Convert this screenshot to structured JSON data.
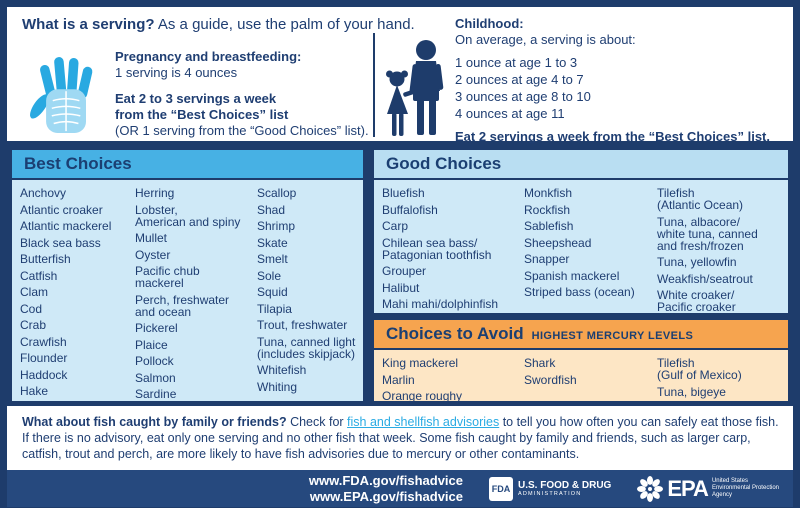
{
  "colors": {
    "navy": "#1e3c6b",
    "text_navy": "#1f3e72",
    "best_header_bg": "#47b1e4",
    "good_header_bg": "#b9def2",
    "panel_body_blue": "#cfe9f7",
    "avoid_header_bg": "#f6a44f",
    "avoid_body_bg": "#fde6c5",
    "link_blue": "#2aabe3",
    "footer_bg": "#26497e",
    "hand_blue": "#29a9e1"
  },
  "header": {
    "question_bold": "What is a serving?",
    "question_rest": " As a guide, use the palm of your hand.",
    "pregnancy": {
      "title": "Pregnancy and breastfeeding:",
      "serving": "1 serving is 4 ounces",
      "eat_line1": "Eat 2 to 3 servings a week",
      "eat_line2": "from the “Best Choices” list",
      "eat_note": "(OR 1 serving from the “Good Choices” list)."
    },
    "childhood": {
      "title": "Childhood:",
      "subtitle": "On average, a serving is about:",
      "servings": [
        "1 ounce at age 1 to 3",
        "2 ounces at age 4 to 7",
        "3 ounces at age 8 to 10",
        "4 ounces at age 11"
      ],
      "eat_bold": "Eat 2 servings a week from the “Best Choices” list."
    }
  },
  "best_choices": {
    "title": "Best Choices",
    "columns": [
      [
        "Anchovy",
        "Atlantic croaker",
        "Atlantic mackerel",
        "Black sea bass",
        "Butterfish",
        "Catfish",
        "Clam",
        "Cod",
        "Crab",
        "Crawfish",
        "Flounder",
        "Haddock",
        "Hake"
      ],
      [
        "Herring",
        "Lobster,\nAmerican and spiny",
        "Mullet",
        "Oyster",
        "Pacific chub\nmackerel",
        "Perch, freshwater\nand ocean",
        "Pickerel",
        "Plaice",
        "Pollock",
        "Salmon",
        "Sardine"
      ],
      [
        "Scallop",
        "Shad",
        "Shrimp",
        "Skate",
        "Smelt",
        "Sole",
        "Squid",
        "Tilapia",
        "Trout, freshwater",
        "Tuna, canned light\n(includes skipjack)",
        "Whitefish",
        "Whiting"
      ]
    ]
  },
  "good_choices": {
    "title": "Good Choices",
    "columns": [
      [
        "Bluefish",
        "Buffalofish",
        "Carp",
        "Chilean sea bass/\nPatagonian toothfish",
        "Grouper",
        "Halibut",
        "Mahi mahi/dolphinfish"
      ],
      [
        "Monkfish",
        "Rockfish",
        "Sablefish",
        "Sheepshead",
        "Snapper",
        "Spanish mackerel",
        "Striped bass (ocean)"
      ],
      [
        "Tilefish\n(Atlantic Ocean)",
        "Tuna, albacore/\nwhite tuna, canned\nand fresh/frozen",
        "Tuna, yellowfin",
        "Weakfish/seatrout",
        "White croaker/\nPacific croaker"
      ]
    ]
  },
  "choices_to_avoid": {
    "title": "Choices to Avoid",
    "subtitle": "HIGHEST MERCURY LEVELS",
    "columns": [
      [
        "King mackerel",
        "Marlin",
        "Orange roughy"
      ],
      [
        "Shark",
        "Swordfish"
      ],
      [
        "Tilefish\n(Gulf of Mexico)",
        "Tuna, bigeye"
      ]
    ]
  },
  "footnote": {
    "question_bold": "What about fish caught by family or friends? ",
    "text_before_link": "Check for ",
    "link_text": "fish and shellfish advisories",
    "text_after_link": " to tell you how often you can safely eat those fish. If there is no advisory, eat only one serving and no other fish that week. Some fish caught by family and friends, such as larger carp, catfish, trout and perch, are more likely to have fish advisories due to mercury or other contaminants."
  },
  "footer": {
    "fda_url": "www.FDA.gov/fishadvice",
    "epa_url": "www.EPA.gov/fishadvice",
    "fda_logo": {
      "box": "FDA",
      "line1": "U.S. FOOD & DRUG",
      "line2": "ADMINISTRATION"
    },
    "epa_logo": {
      "acronym": "EPA",
      "line1": "United States",
      "line2": "Environmental Protection",
      "line3": "Agency"
    }
  }
}
